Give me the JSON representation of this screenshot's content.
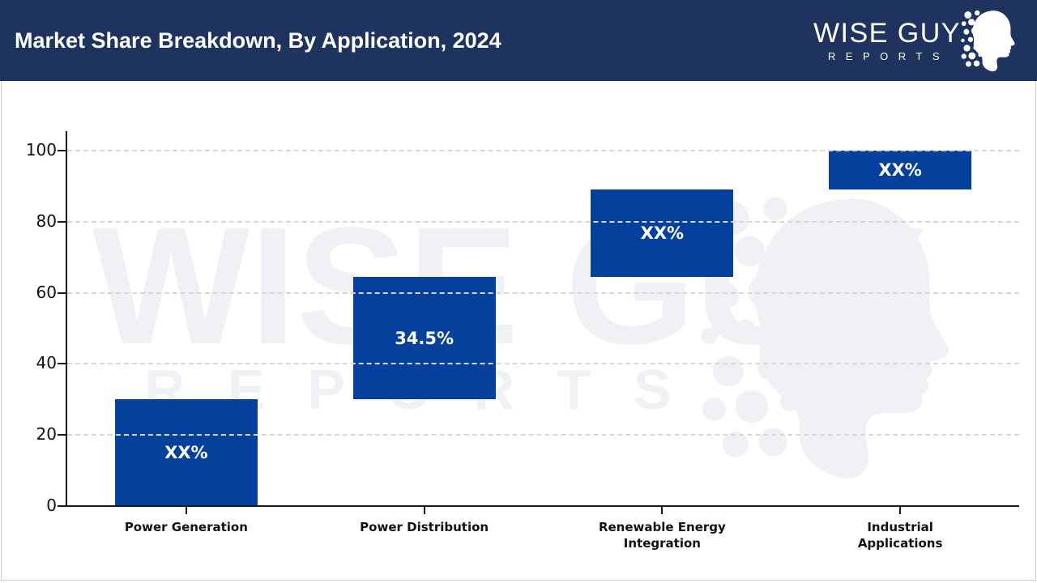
{
  "header": {
    "title": "Market Share Breakdown, By Application, 2024",
    "logo": {
      "line1": "WISE GUY",
      "line2": "REPORTS"
    }
  },
  "watermark": {
    "line1": "WISE GUY",
    "line2": "REPORTS"
  },
  "colors": {
    "header_bg": "#1e345f",
    "bar": "#05409d",
    "grid": "#d8d8d8",
    "axis": "#1a1a1a",
    "watermark": "#f0f1f5",
    "bar_label_text": "#ffffff",
    "tick_text": "#111111"
  },
  "chart_data": {
    "type": "bar",
    "subtype": "waterfall",
    "title": "Market Share Breakdown, By Application, 2024",
    "categories": [
      "Power Generation",
      "Power Distribution",
      "Renewable Energy Integration",
      "Industrial Applications"
    ],
    "category_lines": [
      [
        "Power Generation"
      ],
      [
        "Power Distribution"
      ],
      [
        "Renewable Energy",
        "Integration"
      ],
      [
        "Industrial",
        "Applications"
      ]
    ],
    "segments": [
      {
        "start": 0,
        "end": 30,
        "label": "XX%"
      },
      {
        "start": 30,
        "end": 64.5,
        "label": "34.5%"
      },
      {
        "start": 64.5,
        "end": 89,
        "label": "XX%"
      },
      {
        "start": 89,
        "end": 100,
        "label": "XX%"
      }
    ],
    "yticks": [
      0,
      20,
      40,
      60,
      80,
      100
    ],
    "ylim": [
      0,
      105
    ],
    "xlabel": "",
    "ylabel": "",
    "grid": "horizontal-dashed",
    "legend": "none"
  }
}
